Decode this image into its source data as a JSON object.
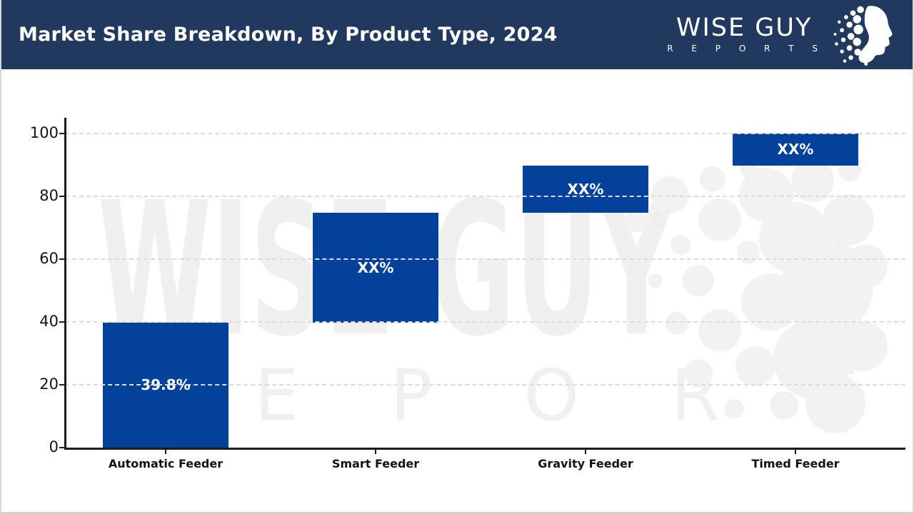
{
  "header": {
    "title": "Market Share Breakdown, By Product Type, 2024"
  },
  "logo": {
    "name": "WISE GUY",
    "subtitle": "R E P O R T S"
  },
  "watermark": {
    "line1": "WISE GUY",
    "line2": "R E P O R T S"
  },
  "colors": {
    "header_bg": "#22395f",
    "bar": "#04419b",
    "bar_label": "#ffffff",
    "axis": "#1c1c1c",
    "grid": "#dcdcdc",
    "watermark": "#f0f0f0"
  },
  "chart_data": {
    "type": "bar",
    "subtype": "waterfall",
    "title": "Market Share Breakdown, By Product Type, 2024",
    "categories": [
      "Automatic Feeder",
      "Smart Feeder",
      "Gravity Feeder",
      "Timed Feeder"
    ],
    "segments": [
      {
        "category": "Automatic Feeder",
        "start": 0,
        "end": 39.8,
        "label": "39.8%"
      },
      {
        "category": "Smart Feeder",
        "start": 39.8,
        "end": 74.8,
        "label": "XX%"
      },
      {
        "category": "Gravity Feeder",
        "start": 74.8,
        "end": 89.8,
        "label": "XX%"
      },
      {
        "category": "Timed Feeder",
        "start": 89.8,
        "end": 100.0,
        "label": "XX%"
      }
    ],
    "yticks": [
      0,
      20,
      40,
      60,
      80,
      100
    ],
    "ylim": [
      0,
      104.5
    ],
    "xlabel": "",
    "ylabel": "",
    "grid": "horizontal-dashed",
    "legend": "none"
  }
}
